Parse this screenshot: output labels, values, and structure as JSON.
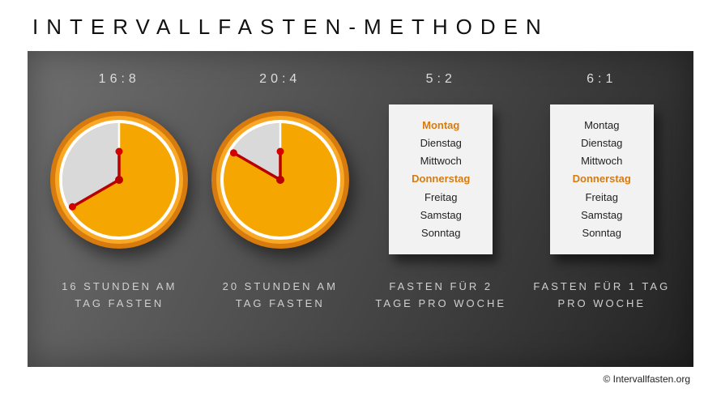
{
  "title": "INTERVALLFASTEN-METHODEN",
  "credit": "© Intervallfasten.org",
  "colors": {
    "clock_rim": "#d77b0e",
    "clock_rim_inner": "#f9a825",
    "clock_fasting": "#f5a600",
    "clock_eating": "#d9d9d9",
    "hand": "#b80000",
    "hand_tip": "#d40000",
    "fast_day_text": "#d77b0e",
    "caption_text": "#cfcfcf",
    "panel_bg": "#444444"
  },
  "columns": [
    {
      "label": "16:8",
      "type": "clock",
      "fasting_hours": 16,
      "caption": "16 STUNDEN AM TAG FASTEN"
    },
    {
      "label": "20:4",
      "type": "clock",
      "fasting_hours": 20,
      "caption": "20 STUNDEN AM TAG FASTEN"
    },
    {
      "label": "5:2",
      "type": "days",
      "days": [
        {
          "name": "Montag",
          "fast": true
        },
        {
          "name": "Dienstag",
          "fast": false
        },
        {
          "name": "Mittwoch",
          "fast": false
        },
        {
          "name": "Donnerstag",
          "fast": true
        },
        {
          "name": "Freitag",
          "fast": false
        },
        {
          "name": "Samstag",
          "fast": false
        },
        {
          "name": "Sonntag",
          "fast": false
        }
      ],
      "caption": "FASTEN FÜR 2 TAGE PRO WOCHE"
    },
    {
      "label": "6:1",
      "type": "days",
      "days": [
        {
          "name": "Montag",
          "fast": false
        },
        {
          "name": "Dienstag",
          "fast": false
        },
        {
          "name": "Mittwoch",
          "fast": false
        },
        {
          "name": "Donnerstag",
          "fast": true
        },
        {
          "name": "Freitag",
          "fast": false
        },
        {
          "name": "Samstag",
          "fast": false
        },
        {
          "name": "Sonntag",
          "fast": false
        }
      ],
      "caption": "FASTEN FÜR 1 TAG PRO WOCHE"
    }
  ]
}
